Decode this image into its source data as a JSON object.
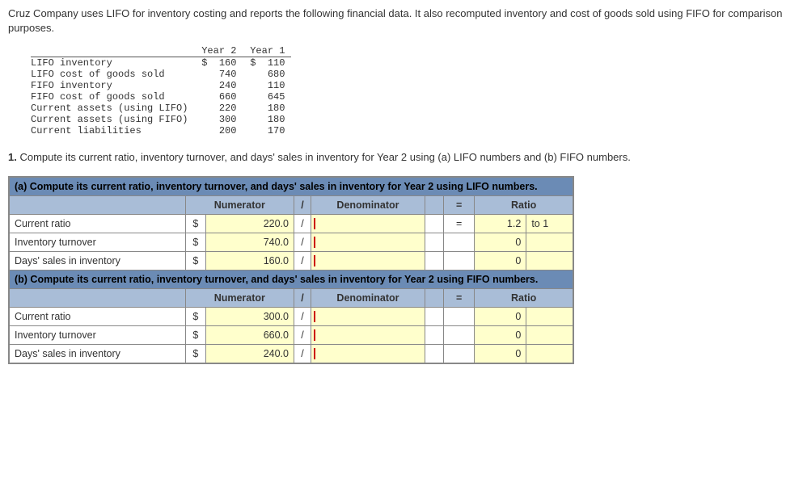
{
  "intro": "Cruz Company uses LIFO for inventory costing and reports the following financial data. It also recomputed inventory and cost of goods sold using FIFO for comparison purposes.",
  "data_table": {
    "col_headers": [
      "",
      "Year 2",
      "Year 1"
    ],
    "rows": [
      [
        "LIFO inventory",
        "$  160",
        "$  110"
      ],
      [
        "LIFO cost of goods sold",
        "740",
        "680"
      ],
      [
        "FIFO inventory",
        "240",
        "110"
      ],
      [
        "FIFO cost of goods sold",
        "660",
        "645"
      ],
      [
        "Current assets (using LIFO)",
        "220",
        "180"
      ],
      [
        "Current assets (using FIFO)",
        "300",
        "180"
      ],
      [
        "Current liabilities",
        "200",
        "170"
      ]
    ]
  },
  "q1_num": "1.",
  "q1_text": " Compute its current ratio, inventory turnover, and days' sales in inventory for Year 2 using (a) LIFO numbers and (b) FIFO numbers.",
  "section_a": {
    "title": "(a) Compute its current ratio, inventory turnover, and days' sales in inventory for Year 2 using LIFO numbers.",
    "headers": {
      "num": "Numerator",
      "slash": "/",
      "denom": "Denominator",
      "eq": "=",
      "ratio": "Ratio"
    },
    "rows": [
      {
        "label": "Current ratio",
        "dollar": "$",
        "num": "220.0",
        "denom": "",
        "eq": "=",
        "ratio": "1.2",
        "unit": "to 1"
      },
      {
        "label": "Inventory turnover",
        "dollar": "$",
        "num": "740.0",
        "denom": "",
        "eq": "",
        "ratio": "0",
        "unit": ""
      },
      {
        "label": "Days' sales in inventory",
        "dollar": "$",
        "num": "160.0",
        "denom": "",
        "eq": "",
        "ratio": "0",
        "unit": ""
      }
    ]
  },
  "section_b": {
    "title": "(b) Compute its current ratio, inventory turnover, and days' sales in inventory for Year 2 using FIFO numbers.",
    "headers": {
      "num": "Numerator",
      "slash": "/",
      "denom": "Denominator",
      "eq": "=",
      "ratio": "Ratio"
    },
    "rows": [
      {
        "label": "Current ratio",
        "dollar": "$",
        "num": "300.0",
        "denom": "",
        "eq": "",
        "ratio": "0",
        "unit": ""
      },
      {
        "label": "Inventory turnover",
        "dollar": "$",
        "num": "660.0",
        "denom": "",
        "eq": "",
        "ratio": "0",
        "unit": ""
      },
      {
        "label": "Days' sales in inventory",
        "dollar": "$",
        "num": "240.0",
        "denom": "",
        "eq": "",
        "ratio": "0",
        "unit": ""
      }
    ]
  }
}
